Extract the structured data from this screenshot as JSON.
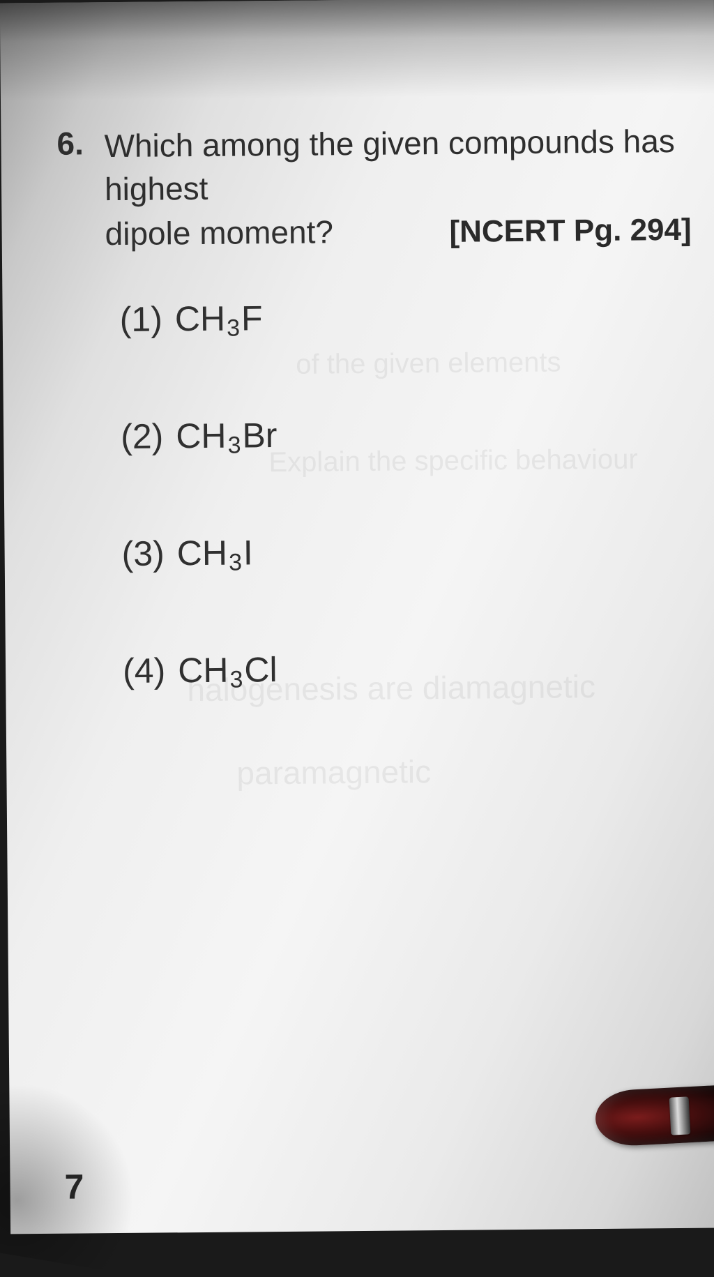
{
  "question": {
    "number": "6.",
    "line1": "Which among the given compounds has highest",
    "line2_left": "dipole moment?",
    "reference": "[NCERT Pg. 294]"
  },
  "options": [
    {
      "label": "(1)",
      "base": "CH",
      "sub": "3",
      "tail": "F"
    },
    {
      "label": "(2)",
      "base": "CH",
      "sub": "3",
      "tail": "Br"
    },
    {
      "label": "(3)",
      "base": "CH",
      "sub": "3",
      "tail": "I"
    },
    {
      "label": "(4)",
      "base": "CH",
      "sub": "3",
      "tail": "Cl"
    }
  ],
  "ghost_text": {
    "g1": "of the given elements",
    "g2": "Explain the specific behaviour",
    "g3": "halogenesis are diamagnetic",
    "g4": "paramagnetic"
  },
  "next_number": "7",
  "colors": {
    "text": "#2e2e2e",
    "paper_light": "#f3f3f3",
    "paper_dark": "#a8a8a8",
    "shadow": "#1a1a1a",
    "pen_red": "#7a1c1c"
  }
}
